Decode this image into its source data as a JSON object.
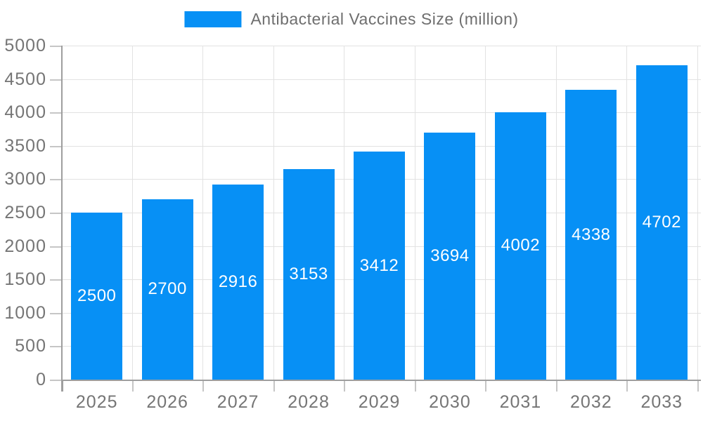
{
  "chart_data": {
    "type": "bar",
    "title": "Antibacterial Vaccines Size (million)",
    "legend_label": "Antibacterial Vaccines Size (million)",
    "legend_position": "top-center",
    "categories": [
      "2025",
      "2026",
      "2027",
      "2028",
      "2029",
      "2030",
      "2031",
      "2032",
      "2033"
    ],
    "values": [
      2500,
      2700,
      2916,
      3153,
      3412,
      3694,
      4002,
      4338,
      4702
    ],
    "xlabel": "",
    "ylabel": "",
    "ylim": [
      0,
      5000
    ],
    "yticks": [
      0,
      500,
      1000,
      1500,
      2000,
      2500,
      3000,
      3500,
      4000,
      4500,
      5000
    ],
    "grid": true,
    "data_labels": "inside-center",
    "colors": {
      "bar": "#0790f5",
      "bar_value_label": "#ffffff",
      "axis_line": "#9e9e9e",
      "gridline": "#e2e2e2",
      "tick_mark": "#c6c6c6",
      "tick_label": "#757575",
      "legend_text": "#6e6e6e",
      "background": "#ffffff"
    }
  }
}
